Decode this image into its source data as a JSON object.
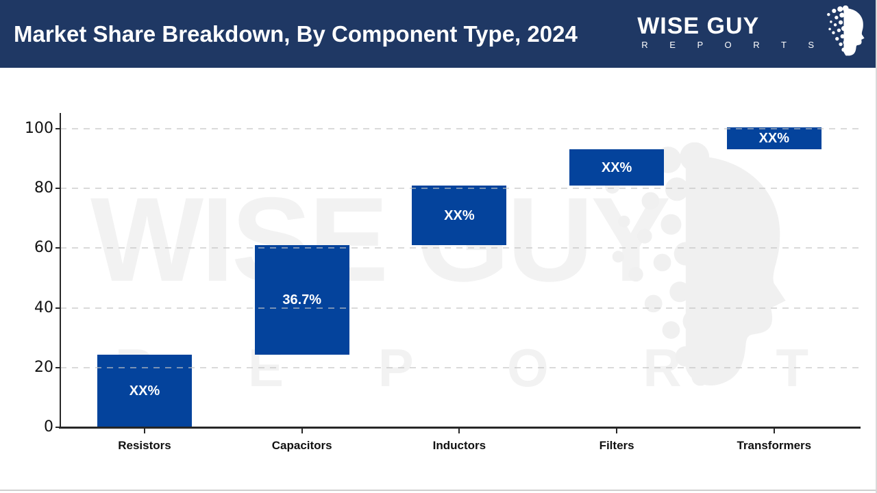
{
  "header": {
    "title": "Market Share Breakdown, By Component Type, 2024",
    "background_color": "#1f3864",
    "logo": {
      "line1": "WISE GUY",
      "line2": "R E P O R T S"
    }
  },
  "watermark": {
    "line1": "WISE GUY",
    "line2": "R E P O R T S"
  },
  "chart_data": {
    "type": "bar",
    "subtype": "waterfall",
    "title": "Market Share Breakdown, By Component Type, 2024",
    "categories": [
      "Resistors",
      "Capacitors",
      "Inductors",
      "Filters",
      "Transformers"
    ],
    "series": [
      {
        "category": "Resistors",
        "start": 0,
        "end": 24.2,
        "value_label": "XX%"
      },
      {
        "category": "Capacitors",
        "start": 24.2,
        "end": 60.9,
        "value_label": "36.7%"
      },
      {
        "category": "Inductors",
        "start": 60.9,
        "end": 80.9,
        "value_label": "XX%"
      },
      {
        "category": "Filters",
        "start": 80.9,
        "end": 93.1,
        "value_label": "XX%"
      },
      {
        "category": "Transformers",
        "start": 93.1,
        "end": 100.4,
        "value_label": "XX%"
      }
    ],
    "xlabel": "",
    "ylabel": "",
    "ylim": [
      0,
      105.5
    ],
    "yticks": [
      0,
      20,
      40,
      60,
      80,
      100
    ],
    "grid": "horizontal dashed, drawn over bars",
    "legend_position": "none",
    "bar_color": "#04439c",
    "bar_label_color": "#ffffff",
    "axis_color": "#262626"
  }
}
